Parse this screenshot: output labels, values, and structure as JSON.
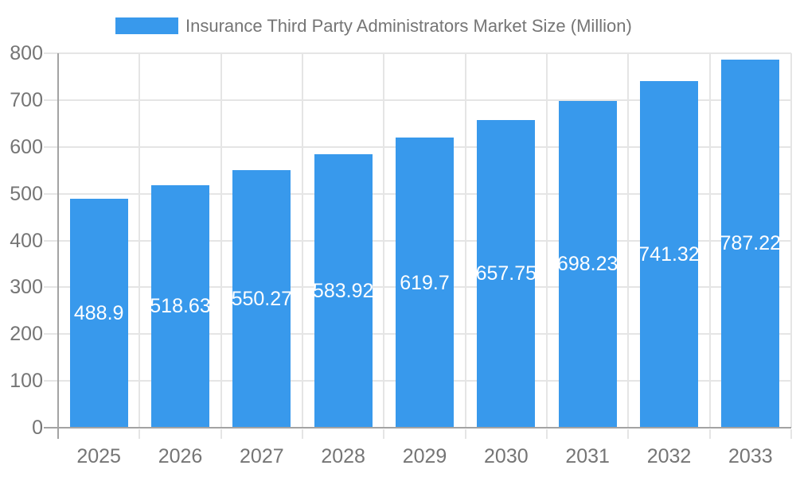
{
  "chart_data": {
    "type": "bar",
    "title": "Insurance Third Party Administrators Market Size (Million)",
    "categories": [
      "2025",
      "2026",
      "2027",
      "2028",
      "2029",
      "2030",
      "2031",
      "2032",
      "2033"
    ],
    "values": [
      488.9,
      518.63,
      550.27,
      583.92,
      619.7,
      657.75,
      698.23,
      741.32,
      787.22
    ],
    "value_labels": [
      "488.9",
      "518.63",
      "550.27",
      "583.92",
      "619.7",
      "657.75",
      "698.23",
      "741.32",
      "787.22"
    ],
    "value_label_position": "center-of-bar",
    "xlabel": "",
    "ylabel": "",
    "ylim": [
      0,
      800
    ],
    "ytick_interval": 100,
    "ytick_labels": [
      "0",
      "100",
      "200",
      "300",
      "400",
      "500",
      "600",
      "700",
      "800"
    ],
    "grid": true,
    "legend_position": "top",
    "colors": {
      "bar": "#3899EC",
      "value_label": "#FFFFFF",
      "axis_text": "#757575",
      "legend_text": "#757575",
      "axis_line": "#A3A3A3",
      "gridline": "#E5E5E5",
      "background": "#FFFFFF"
    }
  }
}
